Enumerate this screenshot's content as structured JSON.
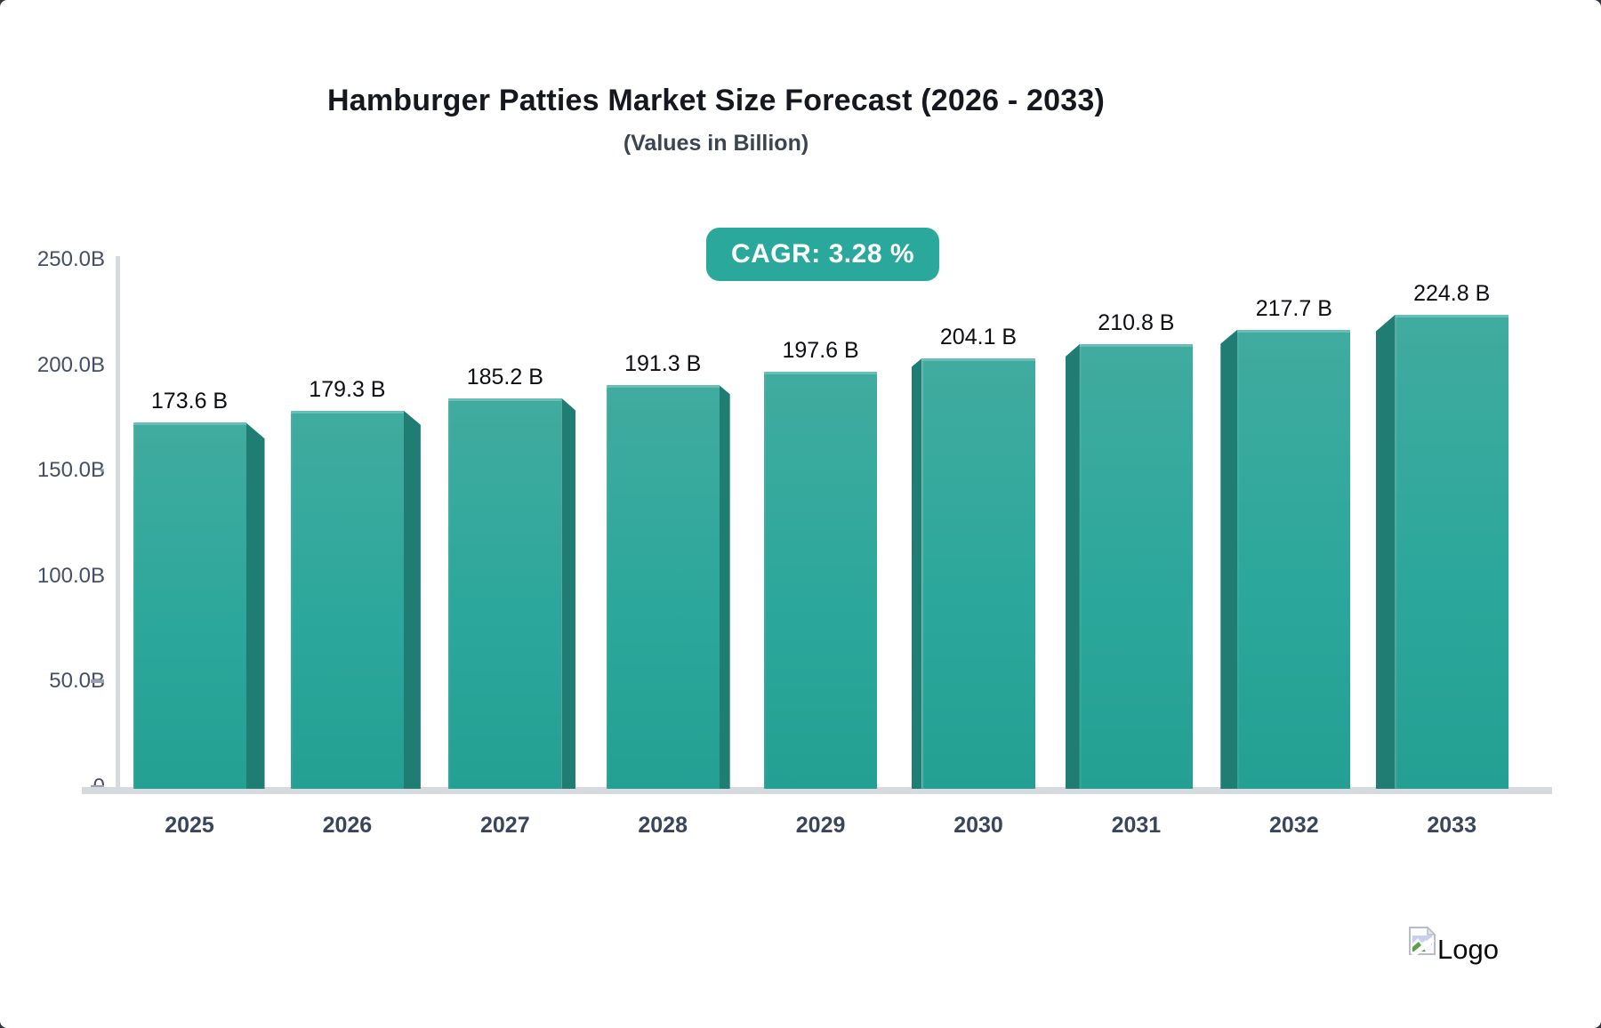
{
  "header": {
    "title": "Hamburger Patties Market Size Forecast (2026 - 2033)",
    "subtitle": "(Values in Billion)",
    "cagr_badge": "CAGR: 3.28 %"
  },
  "colors": {
    "badge_bg": "#2aa89c",
    "bar_face_top": "#41ab9f",
    "bar_face_bottom": "#24a093",
    "bar_side": "#1f7d73",
    "axis": "#d6d9de"
  },
  "chart_data": {
    "type": "bar",
    "title": "Hamburger Patties Market Size Forecast (2026 - 2033)",
    "subtitle": "(Values in Billion)",
    "cagr": "3.28 %",
    "unit": "Billion",
    "categories": [
      "2025",
      "2026",
      "2027",
      "2028",
      "2029",
      "2030",
      "2031",
      "2032",
      "2033"
    ],
    "values": [
      173.6,
      179.3,
      185.2,
      191.3,
      197.6,
      204.1,
      210.8,
      217.7,
      224.8
    ],
    "value_labels": [
      "173.6 B",
      "179.3 B",
      "185.2 B",
      "191.3 B",
      "197.6 B",
      "204.1 B",
      "210.8 B",
      "217.7 B",
      "224.8 B"
    ],
    "xlabel": "",
    "ylabel": "",
    "ylim": [
      0,
      250
    ],
    "y_ticks": [
      "250.0B",
      "200.0B",
      "150.0B",
      "100.0B",
      "50.0B",
      "0"
    ],
    "grid": false,
    "legend": "none",
    "bar_style": "3d-extruded"
  },
  "footer": {
    "logo_alt_text": "Logo",
    "logo_icon": "broken-image-icon"
  }
}
